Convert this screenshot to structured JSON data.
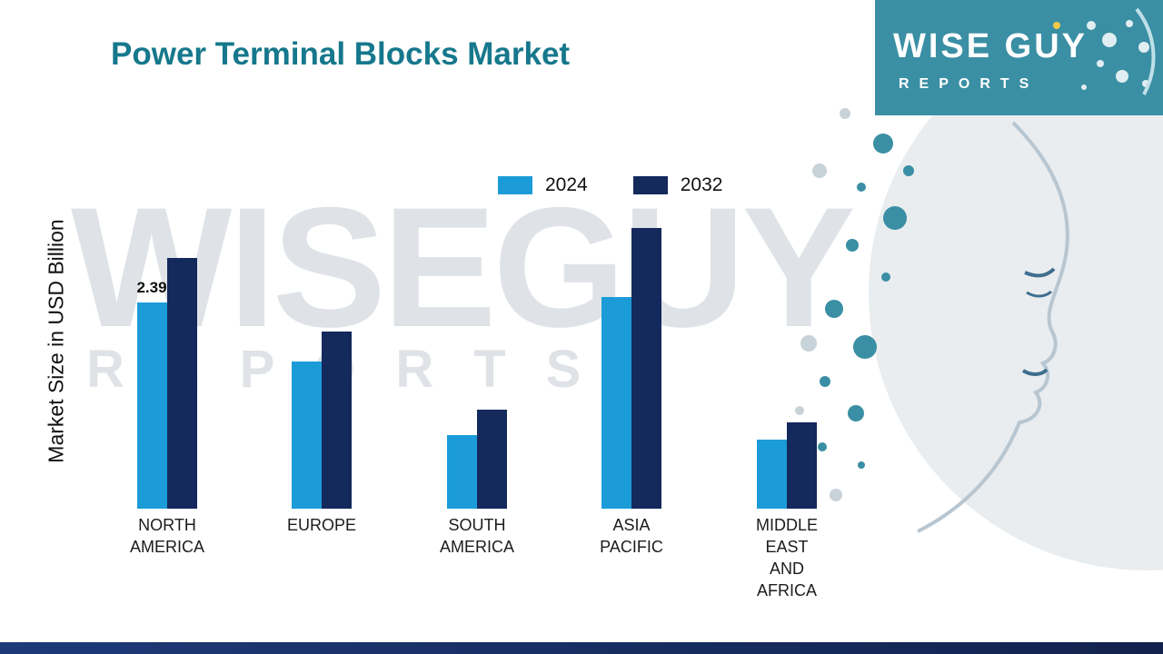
{
  "title": "Power Terminal Blocks Market",
  "ylabel": "Market Size in USD Billion",
  "watermark": {
    "line1": "WISEGUY",
    "line2": "REPORTS"
  },
  "logo": {
    "line1": "WISE GUY",
    "line2": "REPORTS"
  },
  "colors": {
    "title": "#16788c",
    "series_2024": "#1b9cd8",
    "series_2032": "#14295c",
    "logo_background": "#3a8fa4",
    "footer": "#15295c",
    "watermark": "#dfe3e7"
  },
  "chart_data": {
    "type": "bar",
    "title": "Power Terminal Blocks Market",
    "xlabel": "",
    "ylabel": "Market Size in USD Billion",
    "ylim": [
      0,
      3.5
    ],
    "grid": false,
    "legend_position": "top",
    "categories": [
      "NORTH AMERICA",
      "EUROPE",
      "SOUTH AMERICA",
      "ASIA PACIFIC",
      "MIDDLE EAST AND AFRICA"
    ],
    "categories_lines": [
      [
        "NORTH",
        "AMERICA"
      ],
      [
        "EUROPE"
      ],
      [
        "SOUTH",
        "AMERICA"
      ],
      [
        "ASIA",
        "PACIFIC"
      ],
      [
        "MIDDLE",
        "EAST",
        "AND",
        "AFRICA"
      ]
    ],
    "series": [
      {
        "name": "2024",
        "color": "#1b9cd8",
        "values": [
          2.39,
          1.7,
          0.85,
          2.45,
          0.8
        ]
      },
      {
        "name": "2032",
        "color": "#14295c",
        "values": [
          2.9,
          2.05,
          1.15,
          3.25,
          1.0
        ]
      }
    ],
    "bar_label": {
      "series_index": 0,
      "category_index": 0,
      "text": "2.39"
    }
  }
}
